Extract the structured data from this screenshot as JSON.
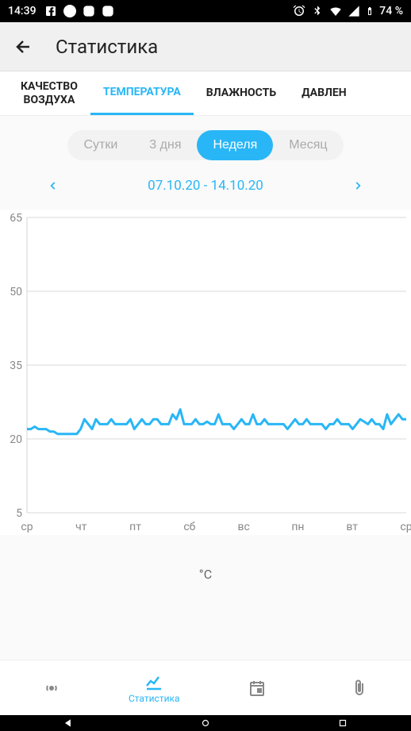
{
  "status": {
    "time": "14:39",
    "battery": "74 %"
  },
  "header": {
    "title": "Статистика"
  },
  "tabs": [
    {
      "label": "КАЧЕСТВО\nВОЗДУХА",
      "active": false
    },
    {
      "label": "ТЕМПЕРАТУРА",
      "active": true
    },
    {
      "label": "ВЛАЖНОСТЬ",
      "active": false
    },
    {
      "label": "ДАВЛЕН",
      "active": false
    }
  ],
  "periods": [
    {
      "label": "Сутки",
      "active": false
    },
    {
      "label": "3 дня",
      "active": false
    },
    {
      "label": "Неделя",
      "active": true
    },
    {
      "label": "Месяц",
      "active": false
    }
  ],
  "dateRange": "07.10.20 - 14.10.20",
  "chart": {
    "type": "line",
    "ylim": [
      5,
      65
    ],
    "yticks": [
      5,
      20,
      35,
      50,
      65
    ],
    "xticks": [
      "ср",
      "чт",
      "пт",
      "сб",
      "вс",
      "пн",
      "вт",
      "ср"
    ],
    "unit": "°C",
    "line_color": "#29b6f6",
    "grid_color": "#cccccc",
    "axis_text_color": "#888888",
    "bg_color": "#ffffff",
    "line_width": 3,
    "axis_fontsize": 14,
    "data": [
      22,
      22,
      22.5,
      22,
      22,
      22,
      21.5,
      21.5,
      21,
      21,
      21,
      21,
      21,
      21,
      22,
      24,
      23,
      22,
      24,
      23,
      23,
      23,
      24,
      23,
      23,
      23,
      23,
      24,
      22,
      23,
      24,
      23,
      23,
      24,
      24,
      23,
      23,
      23,
      25,
      24,
      26,
      23,
      23,
      23,
      24,
      23,
      23,
      23.5,
      23,
      23,
      25,
      23,
      23,
      23,
      22,
      23,
      24,
      23,
      23,
      25,
      23,
      23,
      24,
      23,
      23,
      23,
      23,
      23,
      22,
      23,
      24,
      23,
      23,
      24,
      23,
      23,
      23,
      23,
      22,
      23,
      23,
      24,
      23,
      23,
      23,
      22,
      23,
      24,
      23.5,
      23,
      24,
      23,
      23,
      22,
      25,
      23,
      24,
      25,
      24,
      24
    ]
  },
  "bottomNav": [
    {
      "label": "",
      "icon": "broadcast",
      "active": false
    },
    {
      "label": "Статистика",
      "icon": "chart",
      "active": true
    },
    {
      "label": "",
      "icon": "calendar",
      "active": false
    },
    {
      "label": "",
      "icon": "attachment",
      "active": false
    }
  ],
  "colors": {
    "accent": "#29b6f6",
    "bg": "#fafafa",
    "header_bg": "#f0f0f0",
    "text": "#222222",
    "muted": "#888888"
  }
}
